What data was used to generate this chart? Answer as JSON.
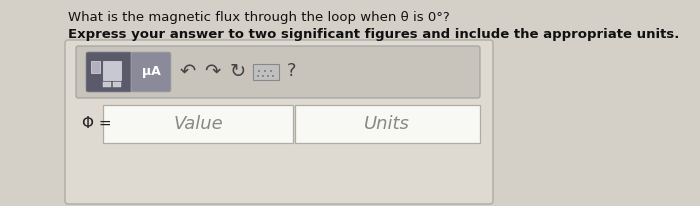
{
  "bg_color": "#d4d0c8",
  "text_bg": "#e8e4dc",
  "title_line1": "What is the magnetic flux through the loop when θ is 0°?",
  "title_line2": "Express your answer to two significant figures and include the appropriate units.",
  "title_fontsize": 9.5,
  "subtitle_fontsize": 9.5,
  "outer_box_facecolor": "#dedad2",
  "outer_box_edgecolor": "#b0aca4",
  "toolbar_bg": "#c8c4bc",
  "toolbar_edge": "#a0a0a0",
  "dark_btn_color": "#5a5a6a",
  "dark_btn_edge": "#888898",
  "mu_btn_color": "#8a8a9a",
  "mu_btn_edge": "#aaaaaa",
  "toolbar_label": "μA",
  "value_label": "Value",
  "units_label": "Units",
  "phi_label": "Φ =",
  "input_box_color": "#f8f8f4",
  "input_box_edge": "#b0aca4",
  "icon_color": "#444444",
  "phi_fontsize": 11,
  "value_fontsize": 13,
  "units_fontsize": 13
}
